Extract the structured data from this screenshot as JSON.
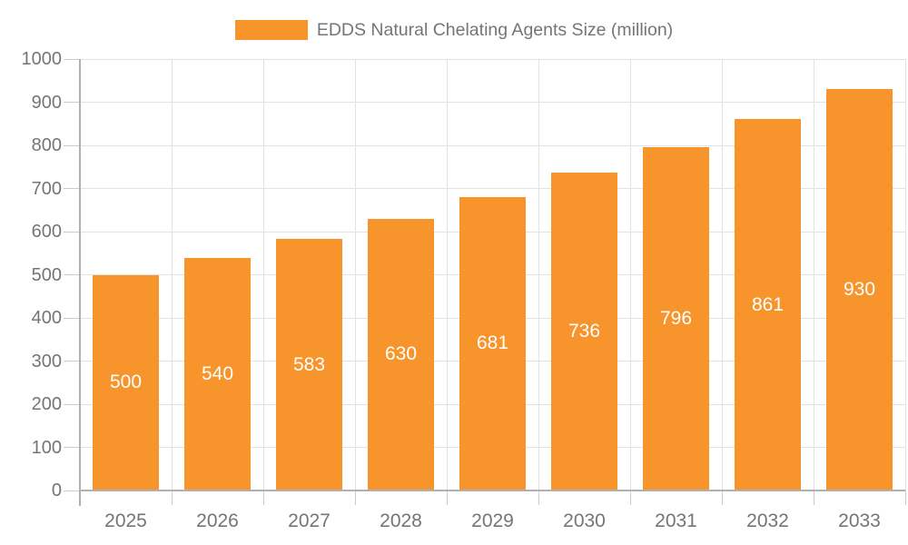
{
  "legend": {
    "label": "EDDS Natural Chelating Agents Size (million)"
  },
  "chart_data": {
    "type": "bar",
    "title": "EDDS Natural Chelating Agents Size (million)",
    "categories": [
      "2025",
      "2026",
      "2027",
      "2028",
      "2029",
      "2030",
      "2031",
      "2032",
      "2033"
    ],
    "values": [
      500,
      540,
      583,
      630,
      681,
      736,
      796,
      861,
      930
    ],
    "xlabel": "",
    "ylabel": "",
    "ylim": [
      0,
      1000
    ],
    "ytick_step": 100,
    "grid": true,
    "legend_position": "top-center",
    "colors": {
      "bar": "#f7942c",
      "bar_value_text": "#ffffff",
      "axis_text": "#757575",
      "gridline": "#e2e2e2",
      "axis_line": "#b0b0b0",
      "tick": "#cccccc"
    }
  }
}
